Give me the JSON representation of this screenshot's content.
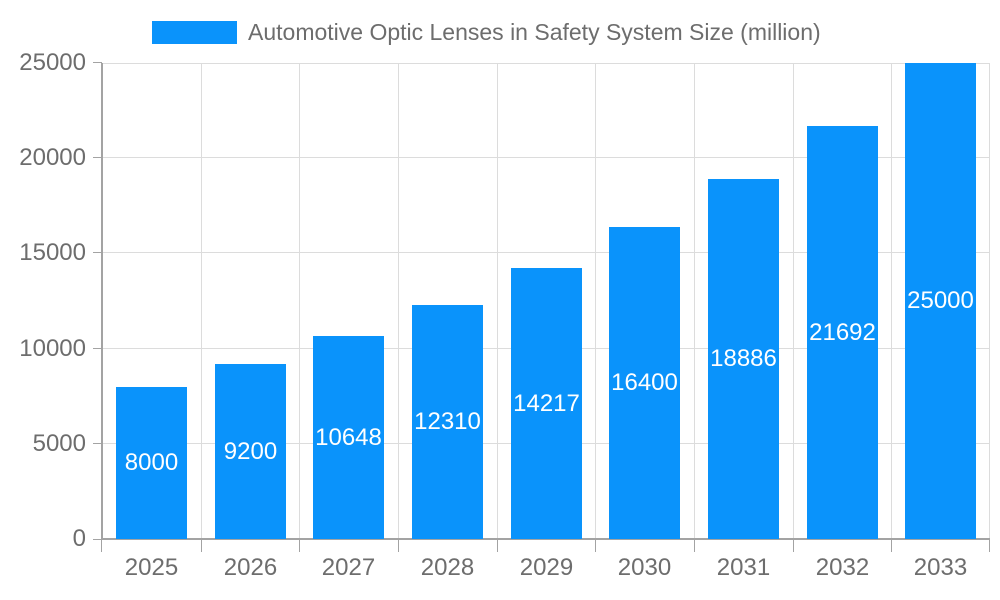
{
  "chart_data": {
    "type": "bar",
    "title": "Automotive Optic Lenses in Safety System Size (million)",
    "categories": [
      "2025",
      "2026",
      "2027",
      "2028",
      "2029",
      "2030",
      "2031",
      "2032",
      "2033"
    ],
    "values": [
      8000,
      9200,
      10648,
      12310,
      14217,
      16400,
      18886,
      21692,
      25000
    ],
    "bar_labels": [
      "8000",
      "9200",
      "10648",
      "12310",
      "14217",
      "16400",
      "18886",
      "21692",
      "25000"
    ],
    "ylim": [
      0,
      25000
    ],
    "ytick_interval": 5000,
    "ytick_labels": [
      "0",
      "5000",
      "10000",
      "15000",
      "20000",
      "25000"
    ],
    "xlabel": "",
    "ylabel": "",
    "grid": true,
    "legend_position": "top",
    "colors": {
      "bar": "#0a93fb",
      "bar_label_text": "#ffffff",
      "axis": "#a3a3a3",
      "gridline": "#dcdcdc",
      "tick_text": "#6d6d6d",
      "title_text": "#6d6d6d",
      "background": "#ffffff"
    }
  }
}
